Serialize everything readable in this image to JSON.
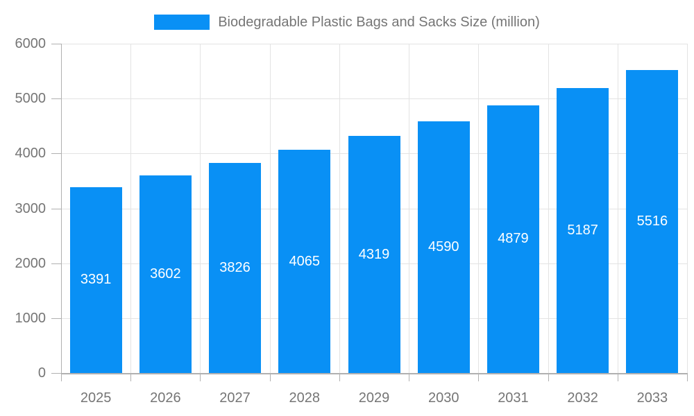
{
  "legend": {
    "label": "Biodegradable Plastic Bags and Sacks Size (million)"
  },
  "chart_data": {
    "type": "bar",
    "title": "Biodegradable Plastic Bags and Sacks Size (million)",
    "categories": [
      "2025",
      "2026",
      "2027",
      "2028",
      "2029",
      "2030",
      "2031",
      "2032",
      "2033"
    ],
    "values": [
      3391,
      3602,
      3826,
      4065,
      4319,
      4590,
      4879,
      5187,
      5516
    ],
    "value_labels": [
      "3391",
      "3602",
      "3826",
      "4065",
      "4319",
      "4590",
      "4879",
      "5187",
      "5516"
    ],
    "xlabel": "",
    "ylabel": "",
    "ylim": [
      0,
      6000
    ],
    "yticks": [
      0,
      1000,
      2000,
      3000,
      4000,
      5000,
      6000
    ],
    "ytick_labels": [
      "0",
      "1000",
      "2000",
      "3000",
      "4000",
      "5000",
      "6000"
    ],
    "grid": true,
    "legend_position": "top-center",
    "colors": {
      "bar": "#0990f5",
      "bar_value_text": "#ffffff",
      "axis_text": "#757575",
      "legend_text": "#757575",
      "gridline": "#e3e3e3",
      "axis_line": "#b0b0b0",
      "background": "#ffffff"
    }
  }
}
